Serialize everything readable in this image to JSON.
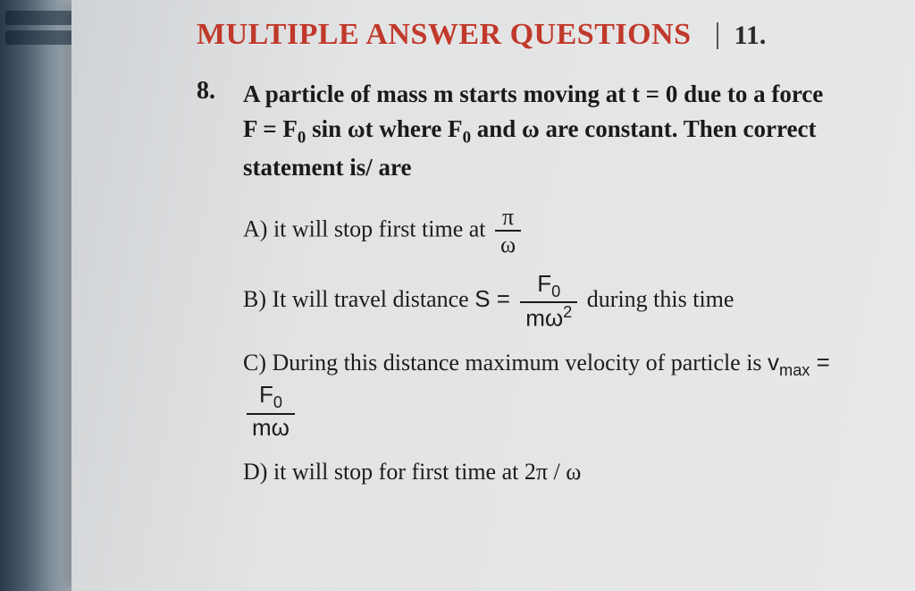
{
  "colors": {
    "header_color": "#c0392b",
    "text_color": "#1a1a1a",
    "page_bg_start": "#d0d3d6",
    "page_bg_end": "#e8e8e8",
    "spine_dark": "#2a3a4a"
  },
  "typography": {
    "body_font": "Times New Roman",
    "header_fontsize_pt": 26,
    "question_fontsize_pt": 20,
    "option_fontsize_pt": 19
  },
  "header": {
    "title": "MULTIPLE ANSWER QUESTIONS",
    "side_number": "11."
  },
  "question": {
    "number": "8.",
    "text_parts": {
      "p1": "A particle of mass m starts moving at t = 0 due to a force F = F",
      "sub0a": "0",
      "p2": " sin ωt where F",
      "sub0b": "0",
      "p3": " and ω are constant. Then correct statement is/ are"
    }
  },
  "options": {
    "A": {
      "label": "A) ",
      "lead": "it will stop first time at ",
      "frac_num": "π",
      "frac_den": "ω"
    },
    "B": {
      "label": "B) ",
      "lead": "It will travel distance ",
      "s_eq": "S = ",
      "frac_num": "F",
      "frac_num_sub": "0",
      "frac_den": "mω",
      "frac_den_sup": "2",
      "tail": " during this time"
    },
    "C": {
      "label": "C) ",
      "lead": "During this distance maximum velocity of particle is ",
      "v_eq": "v",
      "v_sub": "max",
      "eq": " = ",
      "frac_num": "F",
      "frac_num_sub": "0",
      "frac_den": "mω"
    },
    "D": {
      "label": "D) ",
      "lead": "it will stop for first time at ",
      "expr": "2π / ω"
    }
  }
}
